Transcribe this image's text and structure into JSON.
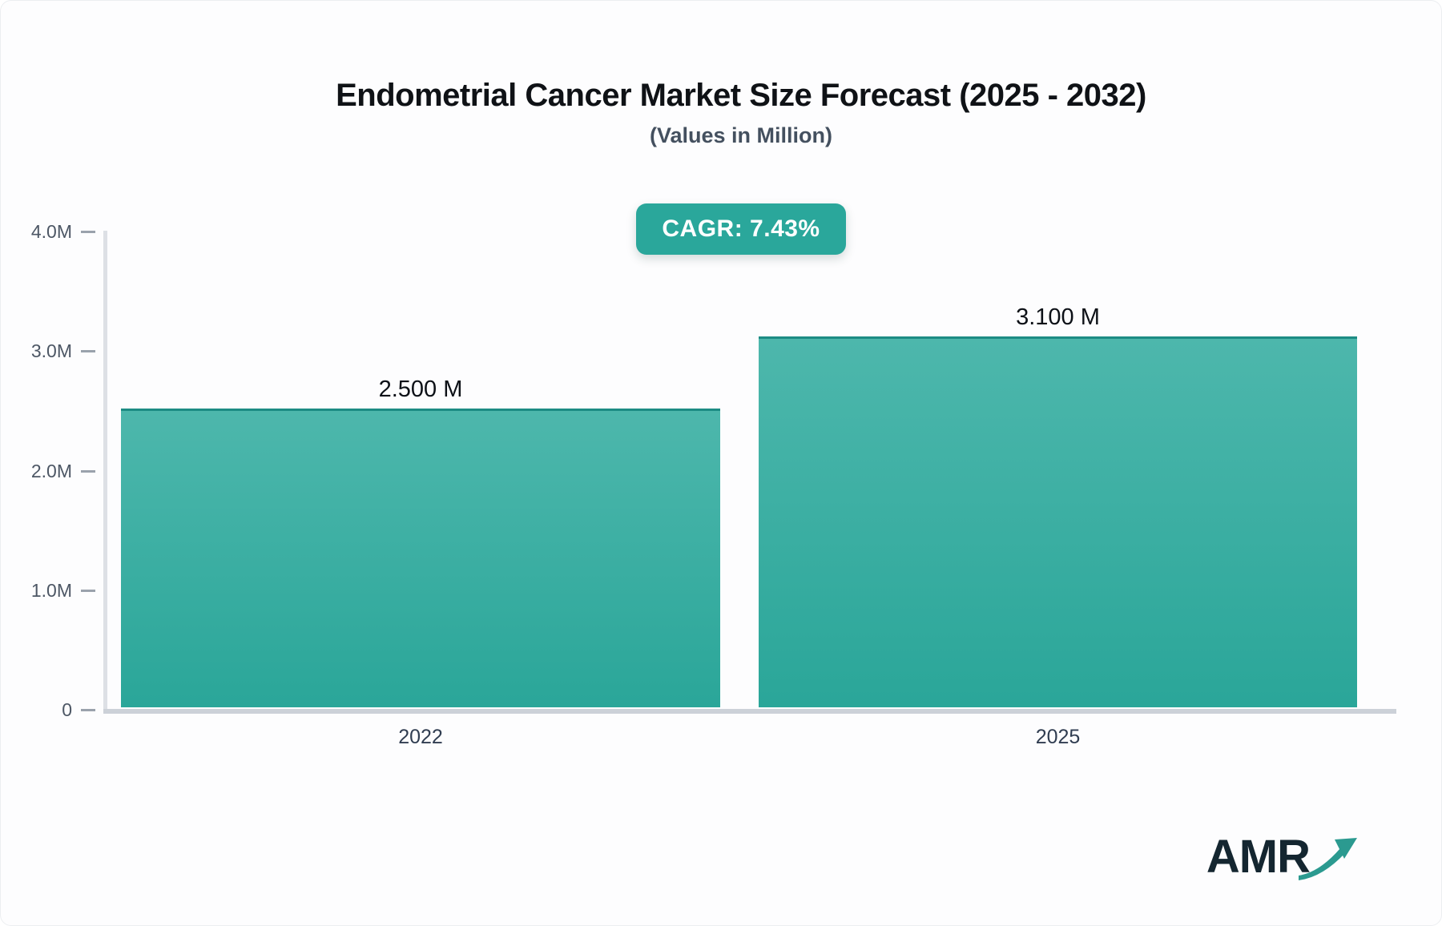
{
  "header": {
    "title": "Endometrial Cancer Market Size Forecast (2025 - 2032)",
    "subtitle": "(Values in Million)"
  },
  "badge": {
    "label": "CAGR: 7.43%"
  },
  "chart_data": {
    "type": "bar",
    "title": "Endometrial Cancer Market Size Forecast (2025 - 2032)",
    "subtitle": "(Values in Million)",
    "annotation": "CAGR: 7.43%",
    "categories": [
      "2022",
      "2025"
    ],
    "values": [
      2.5,
      3.1
    ],
    "value_labels": [
      "2.500 M",
      "3.100 M"
    ],
    "unit": "Million",
    "ylim": [
      0,
      4.0
    ],
    "yticks": [
      "4.0M",
      "3.0M",
      "2.0M",
      "1.0M",
      "0"
    ],
    "ytick_values": [
      4.0,
      3.0,
      2.0,
      1.0,
      0
    ],
    "xlabel": "",
    "ylabel": "",
    "grid": false,
    "legend": false
  },
  "colors": {
    "bar_top": "#4DB7AC",
    "bar_bottom": "#2AA699",
    "bar_border": "#1D8C84",
    "badge_bg": "#2AA79B",
    "badge_text": "#FFFFFF",
    "axis_line": "#D3D7DE",
    "tick_text": "#4D5765",
    "title_text": "#0F1216"
  },
  "logo": {
    "text": "AMR"
  }
}
